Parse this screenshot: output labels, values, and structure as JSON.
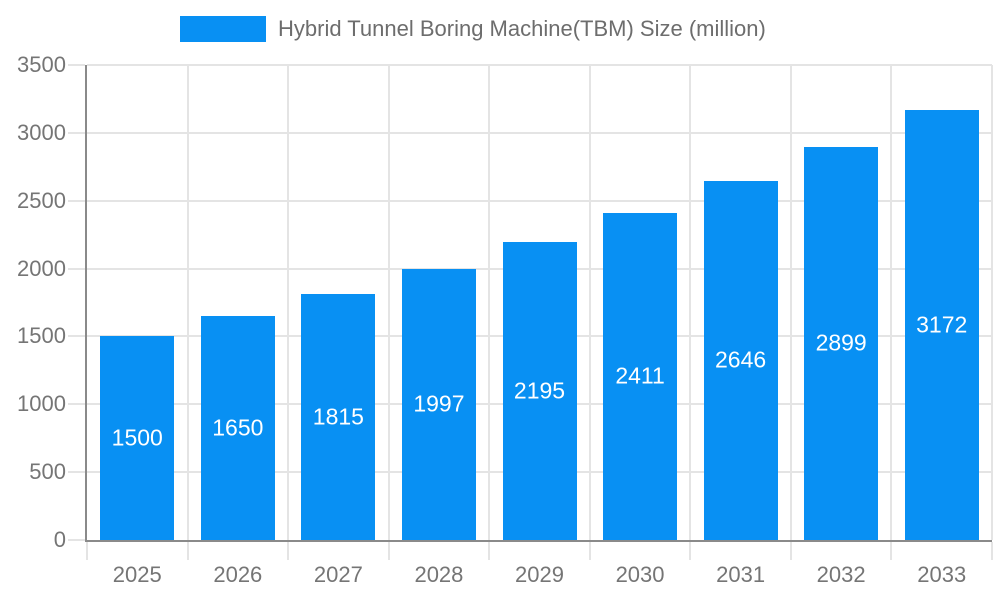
{
  "chart_data": {
    "type": "bar",
    "title": "Hybrid Tunnel Boring Machine(TBM) Size (million)",
    "legend": {
      "label": "Hybrid Tunnel Boring Machine(TBM) Size (million)",
      "position": "top"
    },
    "categories": [
      "2025",
      "2026",
      "2027",
      "2028",
      "2029",
      "2030",
      "2031",
      "2032",
      "2033"
    ],
    "values": [
      1500,
      1650,
      1815,
      1997,
      2195,
      2411,
      2646,
      2899,
      3172
    ],
    "xlabel": "",
    "ylabel": "",
    "ylim": [
      0,
      3500
    ],
    "y_step": 500,
    "grid": true,
    "bar_labels_visible": true,
    "colors": {
      "bar": "#0890F3",
      "grid": "#e4e4e4",
      "axis": "#8a8a8a",
      "tick_label": "#757575",
      "legend_text": "#6d6d6d",
      "bar_label": "#ffffff"
    }
  }
}
